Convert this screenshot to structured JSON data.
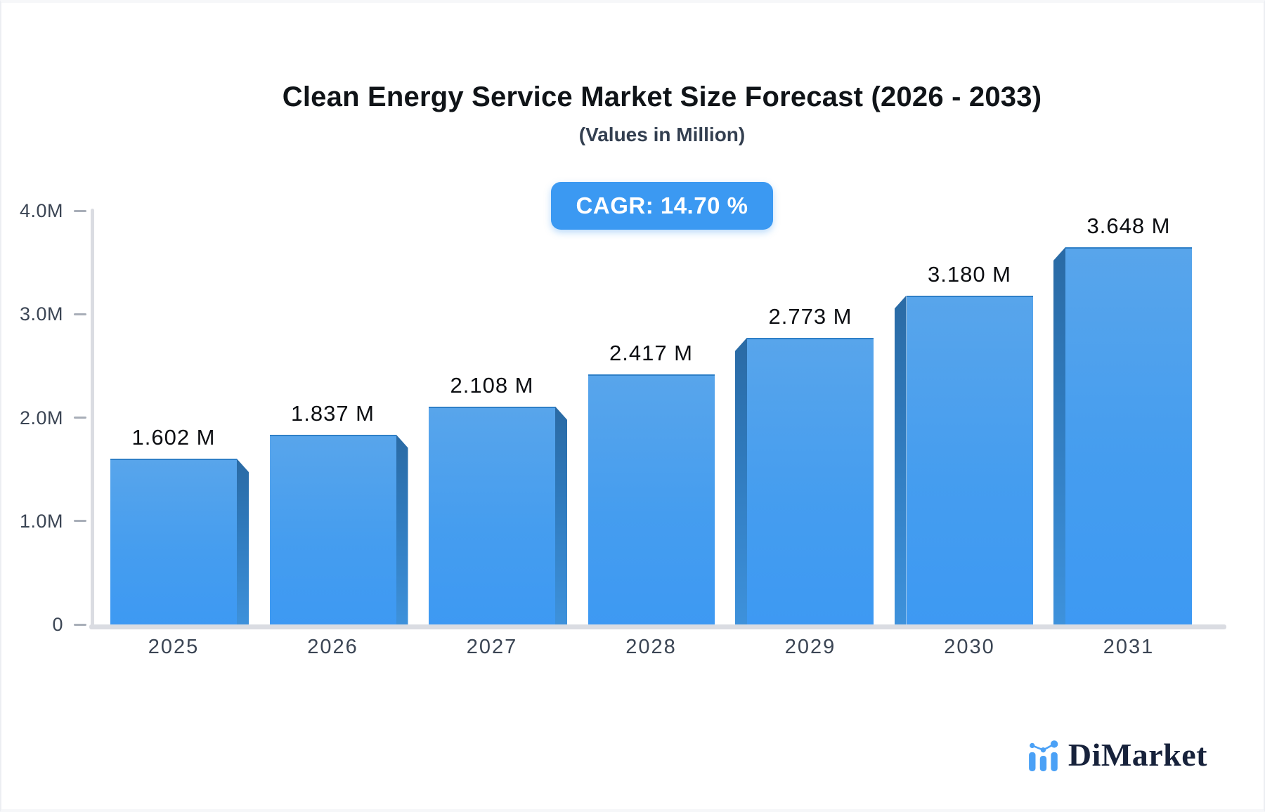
{
  "header": {
    "title": "Clean Energy Service Market Size Forecast (2026 - 2033)",
    "subtitle": "(Values in Million)",
    "cagr_label": "CAGR: 14.70 %"
  },
  "footer": {
    "brand": "DiMarket"
  },
  "colors": {
    "bar_top": "#58A5EB",
    "bar_bottom": "#3D99F3",
    "bar_side_dark": "#2A6AA4",
    "bar_side_light": "#3E92DC",
    "bar_top_border": "#2E7FC7",
    "badge_bg": "#3B99F2",
    "badge_text": "#FFFFFF",
    "axis_gray": "#DADCE2",
    "tick_gray": "#A8AEB8",
    "axis_label": "#3B4554",
    "value_label": "#0C0E12",
    "title_text": "#101418",
    "subtitle_text": "#333F50",
    "logo_navy": "#17223B",
    "logo_blue": "#4BA1F6",
    "background": "#FFFFFF"
  },
  "chart_data": {
    "type": "bar",
    "title": "Clean Energy Service Market Size Forecast (2026 - 2033)",
    "subtitle": "(Values in Million)",
    "annotation": "CAGR: 14.70 %",
    "categories": [
      "2025",
      "2026",
      "2027",
      "2028",
      "2029",
      "2030",
      "2031"
    ],
    "values": [
      1.602,
      1.837,
      2.108,
      2.417,
      2.773,
      3.18,
      3.648
    ],
    "value_labels": [
      "1.602 M",
      "1.837 M",
      "2.108 M",
      "2.417 M",
      "2.773 M",
      "3.180 M",
      "3.648 M"
    ],
    "unit": "Million",
    "xlabel": "",
    "ylabel": "",
    "ylim": [
      0,
      4.0
    ],
    "y_ticks": [
      {
        "label": "4.0M",
        "value": 4.0
      },
      {
        "label": "3.0M",
        "value": 3.0
      },
      {
        "label": "2.0M",
        "value": 2.0
      },
      {
        "label": "1.0M",
        "value": 1.0
      },
      {
        "label": "0",
        "value": 0.0
      }
    ],
    "grid": "off",
    "legend": "none",
    "bar_style": "3d-bevel"
  }
}
